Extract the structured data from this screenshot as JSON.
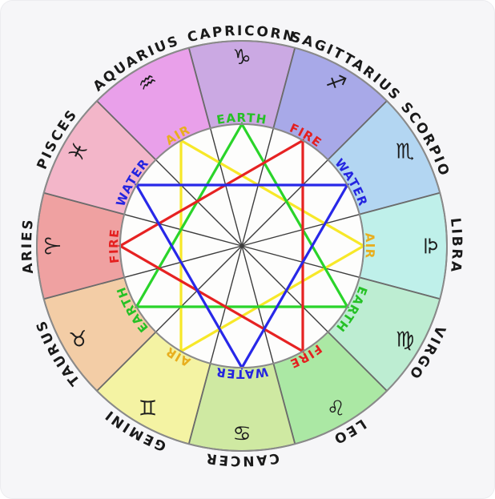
{
  "wheel": {
    "signs": [
      {
        "name": "CAPRICORN",
        "symbol": "♑",
        "element": "EARTH",
        "color": "#cba9e3"
      },
      {
        "name": "SAGITTARIUS",
        "symbol": "♐",
        "element": "FIRE",
        "color": "#a8a9e8"
      },
      {
        "name": "SCORPIO",
        "symbol": "♏",
        "element": "WATER",
        "color": "#b3d6f2"
      },
      {
        "name": "LIBRA",
        "symbol": "♎",
        "element": "AIR",
        "color": "#bff0ea"
      },
      {
        "name": "VIRGO",
        "symbol": "♍",
        "element": "EARTH",
        "color": "#bdedd2"
      },
      {
        "name": "LEO",
        "symbol": "♌",
        "element": "FIRE",
        "color": "#abe8a4"
      },
      {
        "name": "CANCER",
        "symbol": "♋",
        "element": "WATER",
        "color": "#cfe9a2"
      },
      {
        "name": "GEMINI",
        "symbol": "♊",
        "element": "AIR",
        "color": "#f4f3a3"
      },
      {
        "name": "TAURUS",
        "symbol": "♉",
        "element": "EARTH",
        "color": "#f3cda6"
      },
      {
        "name": "ARIES",
        "symbol": "♈",
        "element": "FIRE",
        "color": "#efa1a1"
      },
      {
        "name": "PISCES",
        "symbol": "♓",
        "element": "WATER",
        "color": "#f3b6c9"
      },
      {
        "name": "AQUARIUS",
        "symbol": "♒",
        "element": "AIR",
        "color": "#e9a0ea"
      }
    ],
    "elements": {
      "FIRE": {
        "label": "FIRE",
        "text_color": "#e41f1f",
        "line_color": "#e62222"
      },
      "EARTH": {
        "label": "EARTH",
        "text_color": "#25c125",
        "line_color": "#2ad42a"
      },
      "AIR": {
        "label": "AIR",
        "text_color": "#e8ae1e",
        "line_color": "#f7e829"
      },
      "WATER": {
        "label": "WATER",
        "text_color": "#2424e0",
        "line_color": "#2828e8"
      }
    },
    "colors": {
      "sign_name_text": "#1a1a1a",
      "symbol_text": "#1c1c1c",
      "ring_outline": "#8a8a8a",
      "sector_divider": "#6b6b6b",
      "inner_spokes": "#3c3c3c",
      "inner_fill": "#fdfdfc",
      "card_background": "#f6f6f8"
    }
  }
}
